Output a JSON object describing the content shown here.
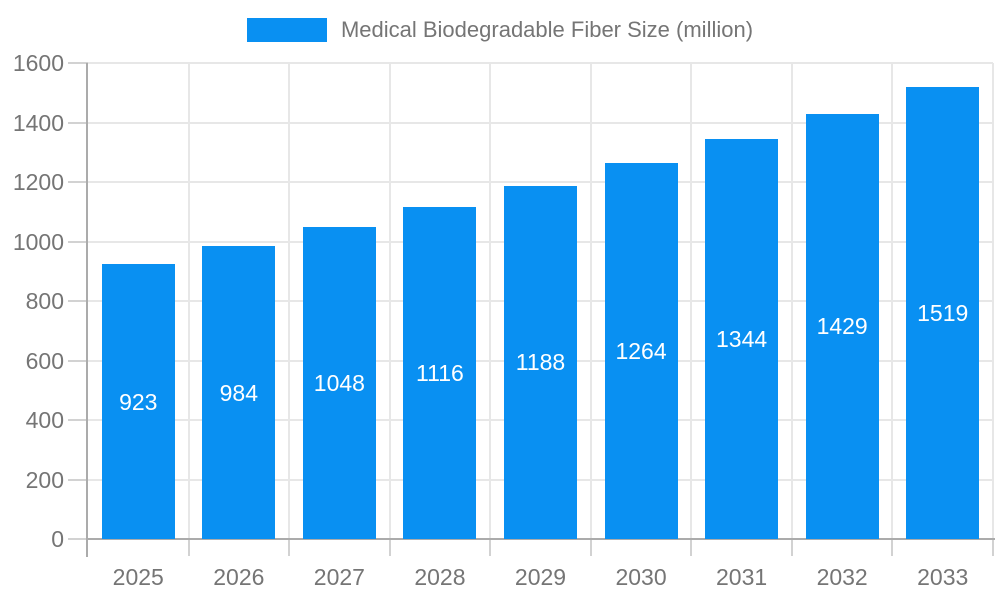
{
  "chart_data": {
    "type": "bar",
    "title": "Medical Biodegradable Fiber Size (million)",
    "legend_entries": [
      "Medical Biodegradable Fiber Size (million)"
    ],
    "legend_position": "top",
    "categories": [
      "2025",
      "2026",
      "2027",
      "2028",
      "2029",
      "2030",
      "2031",
      "2032",
      "2033"
    ],
    "values": [
      923,
      984,
      1048,
      1116,
      1188,
      1264,
      1344,
      1429,
      1519
    ],
    "xlabel": "",
    "ylabel": "",
    "ylim": [
      0,
      1600
    ],
    "ytick_step": 200,
    "ytick_labels": [
      "0",
      "200",
      "400",
      "600",
      "800",
      "1000",
      "1200",
      "1400",
      "1600"
    ],
    "grid": true,
    "value_labels_shown_inside_bars": true,
    "colors": {
      "bar": "#0990F2",
      "value_label": "#FFFFFF",
      "axis_text": "#757575",
      "gridline": "#E7E7E7",
      "tick": "#D2D2D2",
      "axis_line": "#ABABAB",
      "background": "#FFFFFF"
    }
  }
}
